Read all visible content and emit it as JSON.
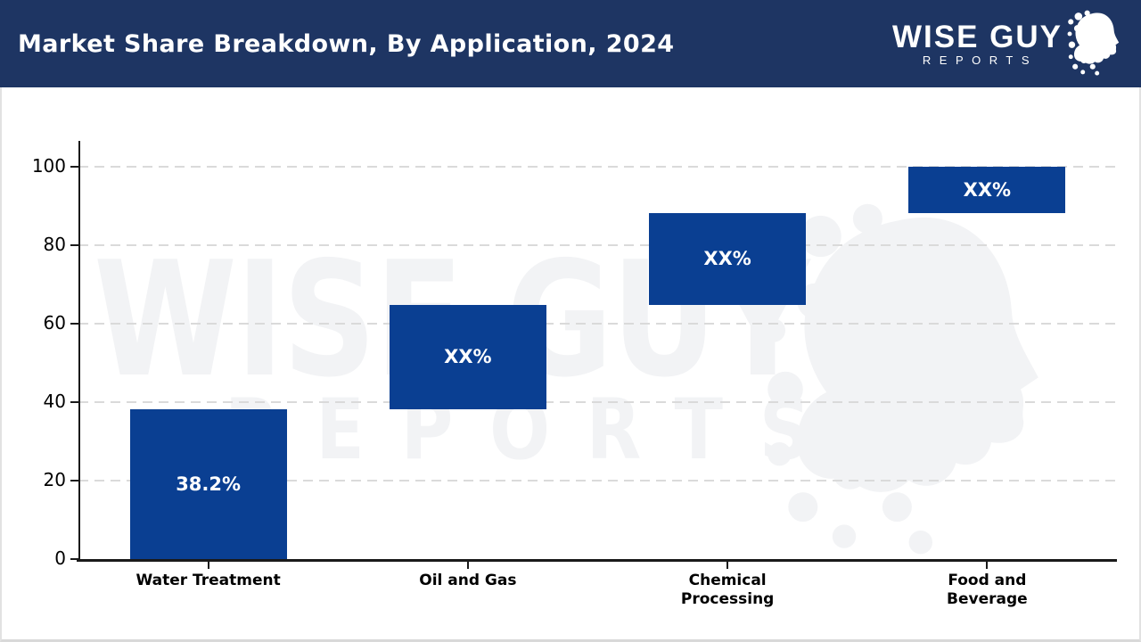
{
  "header": {
    "title": "Market Share Breakdown, By Application, 2024",
    "bg_color": "#1e3563",
    "logo": {
      "line1": "WISE GUY",
      "line2": "REPORTS"
    }
  },
  "watermark": {
    "line1": "WISE GUY",
    "line2": "REPORTS"
  },
  "chart_data": {
    "type": "bar",
    "subtype": "waterfall",
    "title": "Market Share Breakdown, By Application, 2024",
    "categories": [
      "Water Treatment",
      "Oil and Gas",
      "Chemical Processing",
      "Food and Beverage"
    ],
    "segments": [
      {
        "category": "Water Treatment",
        "start": 0,
        "end": 38.2,
        "label": "38.2%"
      },
      {
        "category": "Oil and Gas",
        "start": 38.2,
        "end": 64.8,
        "label": "XX%"
      },
      {
        "category": "Chemical Processing",
        "start": 64.8,
        "end": 88.2,
        "label": "XX%"
      },
      {
        "category": "Food and Beverage",
        "start": 88.2,
        "end": 100,
        "label": "XX%"
      }
    ],
    "y_ticks": [
      0,
      20,
      40,
      60,
      80,
      100
    ],
    "ylim": [
      0,
      106
    ],
    "xlabel": "",
    "ylabel": "",
    "grid": "horizontal-dashed",
    "legend": "none",
    "bar_color": "#0a3f92",
    "bar_label_color": "#ffffff",
    "axis_color": "#1a1a1a",
    "gridline_color": "#dadada"
  }
}
